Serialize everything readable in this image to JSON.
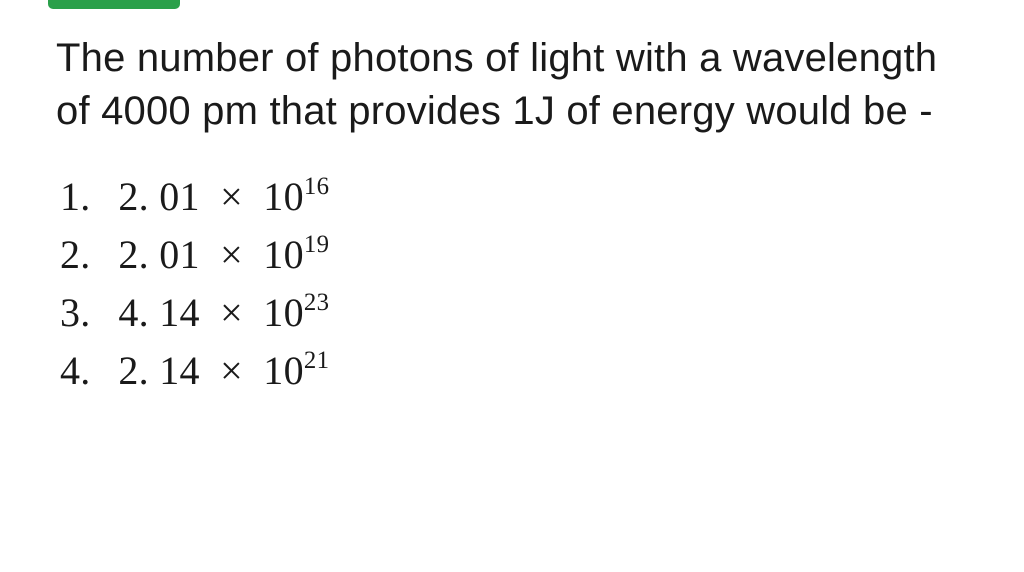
{
  "accent_color": "#2aa04a",
  "background_color": "#ffffff",
  "text_color": "#1a1a1a",
  "question_fontsize": 40,
  "option_fontsize": 40,
  "question": "The number of photons of light with a wavelength of 4000 pm that provides 1J of energy would be -",
  "options": [
    {
      "index": "1.",
      "mantissa": "2. 01",
      "operator": "×",
      "base": "10",
      "exponent": "16"
    },
    {
      "index": "2.",
      "mantissa": "2. 01",
      "operator": "×",
      "base": "10",
      "exponent": "19"
    },
    {
      "index": "3.",
      "mantissa": "4. 14",
      "operator": "×",
      "base": "10",
      "exponent": "23"
    },
    {
      "index": "4.",
      "mantissa": "2. 14",
      "operator": "×",
      "base": "10",
      "exponent": "21"
    }
  ]
}
